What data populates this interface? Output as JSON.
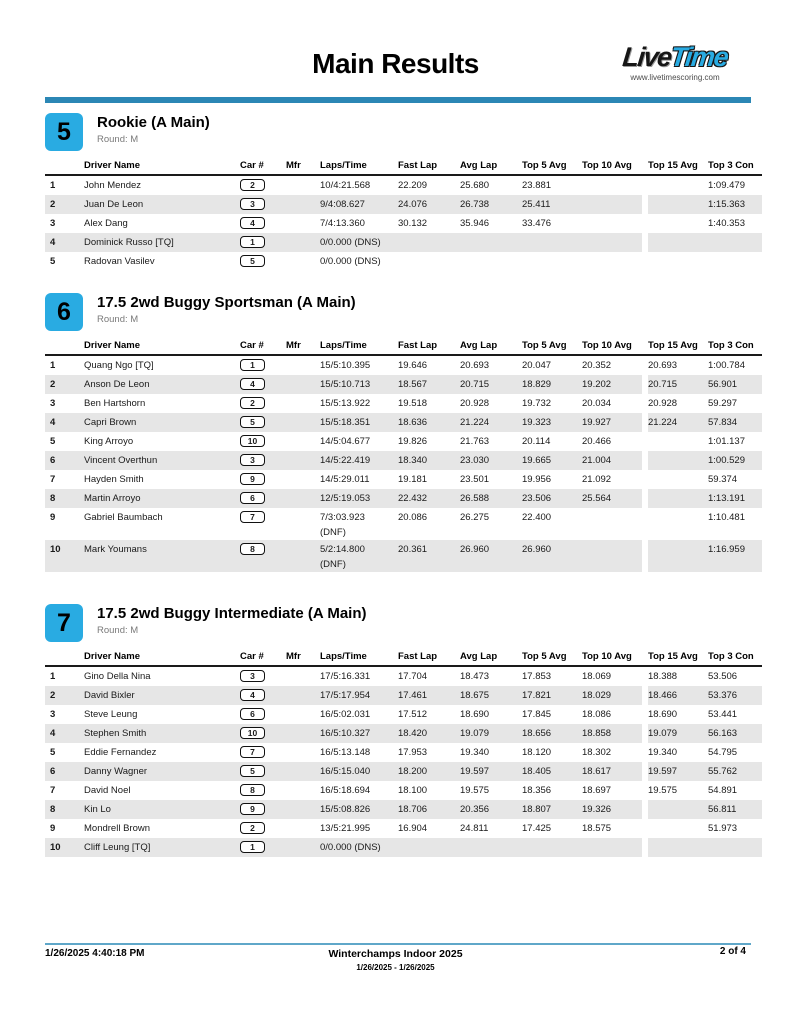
{
  "header": {
    "title": "Main Results",
    "logo_live": "Live",
    "logo_time": "Time",
    "logo_url": "www.livetimescoring.com"
  },
  "colors": {
    "accent_cyan": "#29ABE2",
    "rule_blue": "#2b87b5",
    "row_alt_gray": "#e6e6e6"
  },
  "columns": {
    "pos": "",
    "driver": "Driver Name",
    "car": "Car #",
    "mfr": "Mfr",
    "laps": "Laps/Time",
    "fast": "Fast Lap",
    "avg": "Avg Lap",
    "top5": "Top 5 Avg",
    "top10": "Top 10 Avg",
    "top15": "Top 15 Avg",
    "top3": "Top 3 Con"
  },
  "sections": [
    {
      "number": "5",
      "title": "Rookie (A Main)",
      "round": "Round: M",
      "rows": [
        {
          "pos": "1",
          "driver": "John Mendez",
          "car": "2",
          "mfr": "",
          "laps": "10/4:21.568",
          "laps2": "",
          "fast": "22.209",
          "avg": "25.680",
          "top5": "23.881",
          "top10": "",
          "top15": "",
          "top3": "1:09.479"
        },
        {
          "pos": "2",
          "driver": "Juan De Leon",
          "car": "3",
          "mfr": "",
          "laps": "9/4:08.627",
          "laps2": "",
          "fast": "24.076",
          "avg": "26.738",
          "top5": "25.411",
          "top10": "",
          "top15": "",
          "top3": "1:15.363"
        },
        {
          "pos": "3",
          "driver": "Alex Dang",
          "car": "4",
          "mfr": "",
          "laps": "7/4:13.360",
          "laps2": "",
          "fast": "30.132",
          "avg": "35.946",
          "top5": "33.476",
          "top10": "",
          "top15": "",
          "top3": "1:40.353"
        },
        {
          "pos": "4",
          "driver": "Dominick Russo [TQ]",
          "car": "1",
          "mfr": "",
          "laps": "0/0.000 (DNS)",
          "laps2": "",
          "fast": "",
          "avg": "",
          "top5": "",
          "top10": "",
          "top15": "",
          "top3": ""
        },
        {
          "pos": "5",
          "driver": "Radovan Vasilev",
          "car": "5",
          "mfr": "",
          "laps": "0/0.000 (DNS)",
          "laps2": "",
          "fast": "",
          "avg": "",
          "top5": "",
          "top10": "",
          "top15": "",
          "top3": ""
        }
      ]
    },
    {
      "number": "6",
      "title": "17.5 2wd Buggy Sportsman (A Main)",
      "round": "Round: M",
      "rows": [
        {
          "pos": "1",
          "driver": "Quang Ngo [TQ]",
          "car": "1",
          "mfr": "",
          "laps": "15/5:10.395",
          "laps2": "",
          "fast": "19.646",
          "avg": "20.693",
          "top5": "20.047",
          "top10": "20.352",
          "top15": "20.693",
          "top3": "1:00.784"
        },
        {
          "pos": "2",
          "driver": "Anson De Leon",
          "car": "4",
          "mfr": "",
          "laps": "15/5:10.713",
          "laps2": "",
          "fast": "18.567",
          "avg": "20.715",
          "top5": "18.829",
          "top10": "19.202",
          "top15": "20.715",
          "top3": "56.901"
        },
        {
          "pos": "3",
          "driver": "Ben Hartshorn",
          "car": "2",
          "mfr": "",
          "laps": "15/5:13.922",
          "laps2": "",
          "fast": "19.518",
          "avg": "20.928",
          "top5": "19.732",
          "top10": "20.034",
          "top15": "20.928",
          "top3": "59.297"
        },
        {
          "pos": "4",
          "driver": "Capri Brown",
          "car": "5",
          "mfr": "",
          "laps": "15/5:18.351",
          "laps2": "",
          "fast": "18.636",
          "avg": "21.224",
          "top5": "19.323",
          "top10": "19.927",
          "top15": "21.224",
          "top3": "57.834"
        },
        {
          "pos": "5",
          "driver": "King Arroyo",
          "car": "10",
          "mfr": "",
          "laps": "14/5:04.677",
          "laps2": "",
          "fast": "19.826",
          "avg": "21.763",
          "top5": "20.114",
          "top10": "20.466",
          "top15": "",
          "top3": "1:01.137"
        },
        {
          "pos": "6",
          "driver": "Vincent Overthun",
          "car": "3",
          "mfr": "",
          "laps": "14/5:22.419",
          "laps2": "",
          "fast": "18.340",
          "avg": "23.030",
          "top5": "19.665",
          "top10": "21.004",
          "top15": "",
          "top3": "1:00.529"
        },
        {
          "pos": "7",
          "driver": "Hayden Smith",
          "car": "9",
          "mfr": "",
          "laps": "14/5:29.011",
          "laps2": "",
          "fast": "19.181",
          "avg": "23.501",
          "top5": "19.956",
          "top10": "21.092",
          "top15": "",
          "top3": "59.374"
        },
        {
          "pos": "8",
          "driver": "Martin Arroyo",
          "car": "6",
          "mfr": "",
          "laps": "12/5:19.053",
          "laps2": "",
          "fast": "22.432",
          "avg": "26.588",
          "top5": "23.506",
          "top10": "25.564",
          "top15": "",
          "top3": "1:13.191"
        },
        {
          "pos": "9",
          "driver": "Gabriel Baumbach",
          "car": "7",
          "mfr": "",
          "laps": "7/3:03.923",
          "laps2": "(DNF)",
          "fast": "20.086",
          "avg": "26.275",
          "top5": "22.400",
          "top10": "",
          "top15": "",
          "top3": "1:10.481"
        },
        {
          "pos": "10",
          "driver": "Mark Youmans",
          "car": "8",
          "mfr": "",
          "laps": "5/2:14.800",
          "laps2": "(DNF)",
          "fast": "20.361",
          "avg": "26.960",
          "top5": "26.960",
          "top10": "",
          "top15": "",
          "top3": "1:16.959"
        }
      ]
    },
    {
      "number": "7",
      "title": "17.5 2wd Buggy Intermediate (A Main)",
      "round": "Round: M",
      "rows": [
        {
          "pos": "1",
          "driver": "Gino Della Nina",
          "car": "3",
          "mfr": "",
          "laps": "17/5:16.331",
          "laps2": "",
          "fast": "17.704",
          "avg": "18.473",
          "top5": "17.853",
          "top10": "18.069",
          "top15": "18.388",
          "top3": "53.506"
        },
        {
          "pos": "2",
          "driver": "David Bixler",
          "car": "4",
          "mfr": "",
          "laps": "17/5:17.954",
          "laps2": "",
          "fast": "17.461",
          "avg": "18.675",
          "top5": "17.821",
          "top10": "18.029",
          "top15": "18.466",
          "top3": "53.376"
        },
        {
          "pos": "3",
          "driver": "Steve Leung",
          "car": "6",
          "mfr": "",
          "laps": "16/5:02.031",
          "laps2": "",
          "fast": "17.512",
          "avg": "18.690",
          "top5": "17.845",
          "top10": "18.086",
          "top15": "18.690",
          "top3": "53.441"
        },
        {
          "pos": "4",
          "driver": "Stephen Smith",
          "car": "10",
          "mfr": "",
          "laps": "16/5:10.327",
          "laps2": "",
          "fast": "18.420",
          "avg": "19.079",
          "top5": "18.656",
          "top10": "18.858",
          "top15": "19.079",
          "top3": "56.163"
        },
        {
          "pos": "5",
          "driver": "Eddie Fernandez",
          "car": "7",
          "mfr": "",
          "laps": "16/5:13.148",
          "laps2": "",
          "fast": "17.953",
          "avg": "19.340",
          "top5": "18.120",
          "top10": "18.302",
          "top15": "19.340",
          "top3": "54.795"
        },
        {
          "pos": "6",
          "driver": "Danny Wagner",
          "car": "5",
          "mfr": "",
          "laps": "16/5:15.040",
          "laps2": "",
          "fast": "18.200",
          "avg": "19.597",
          "top5": "18.405",
          "top10": "18.617",
          "top15": "19.597",
          "top3": "55.762"
        },
        {
          "pos": "7",
          "driver": "David Noel",
          "car": "8",
          "mfr": "",
          "laps": "16/5:18.694",
          "laps2": "",
          "fast": "18.100",
          "avg": "19.575",
          "top5": "18.356",
          "top10": "18.697",
          "top15": "19.575",
          "top3": "54.891"
        },
        {
          "pos": "8",
          "driver": "Kin Lo",
          "car": "9",
          "mfr": "",
          "laps": "15/5:08.826",
          "laps2": "",
          "fast": "18.706",
          "avg": "20.356",
          "top5": "18.807",
          "top10": "19.326",
          "top15": "",
          "top3": "56.811"
        },
        {
          "pos": "9",
          "driver": "Mondrell Brown",
          "car": "2",
          "mfr": "",
          "laps": "13/5:21.995",
          "laps2": "",
          "fast": "16.904",
          "avg": "24.811",
          "top5": "17.425",
          "top10": "18.575",
          "top15": "",
          "top3": "51.973"
        },
        {
          "pos": "10",
          "driver": "Cliff Leung [TQ]",
          "car": "1",
          "mfr": "",
          "laps": "0/0.000 (DNS)",
          "laps2": "",
          "fast": "",
          "avg": "",
          "top5": "",
          "top10": "",
          "top15": "",
          "top3": ""
        }
      ]
    }
  ],
  "footer": {
    "timestamp": "1/26/2025 4:40:18 PM",
    "event": "Winterchamps Indoor 2025",
    "dates": "1/26/2025 - 1/26/2025",
    "page_num": "2 of 4"
  }
}
